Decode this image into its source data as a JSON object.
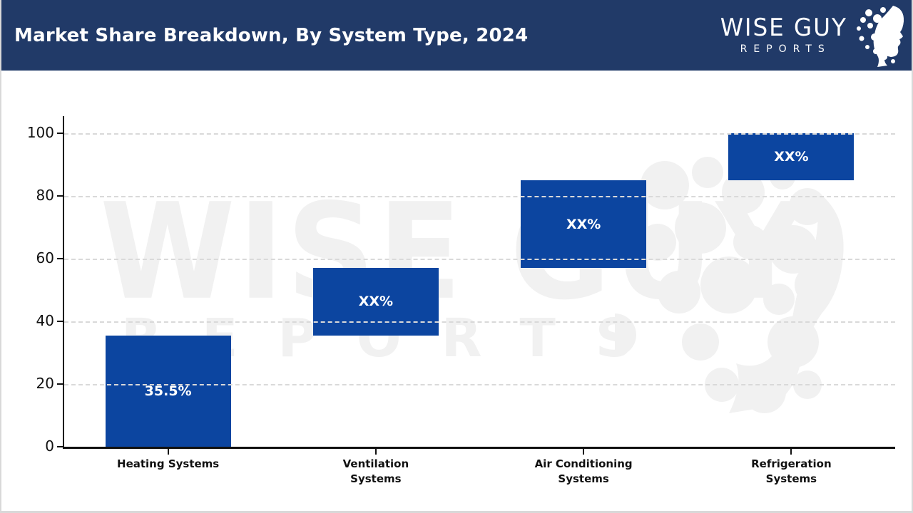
{
  "header": {
    "title": "Market Share Breakdown, By System Type, 2024",
    "logo": {
      "wordmark": "WISE GUY",
      "subtext": "REPORTS"
    }
  },
  "watermark": {
    "line1": "WISE GUY",
    "line2": "REPORTS"
  },
  "colors": {
    "header_bg": "#213a68",
    "bar": "#0c45a0",
    "grid": "#d9d9d9",
    "axis": "#111111",
    "bar_label": "#ffffff",
    "watermark": "#f1f1f1"
  },
  "chart_data": {
    "type": "bar",
    "subtype": "waterfall-breakdown",
    "title": "Market Share Breakdown, By System Type, 2024",
    "categories": [
      "Heating Systems",
      "Ventilation\nSystems",
      "Air Conditioning\nSystems",
      "Refrigeration\nSystems"
    ],
    "segments": [
      {
        "category": "Heating Systems",
        "start": 0,
        "end": 35.5,
        "label": "35.5%"
      },
      {
        "category": "Ventilation Systems",
        "start": 35.5,
        "end": 57,
        "label": "XX%"
      },
      {
        "category": "Air Conditioning Systems",
        "start": 57,
        "end": 85,
        "label": "XX%"
      },
      {
        "category": "Refrigeration Systems",
        "start": 85,
        "end": 100,
        "label": "XX%"
      }
    ],
    "xlabel": "",
    "ylabel": "",
    "ylim": [
      0,
      100
    ],
    "yticks": [
      0,
      20,
      40,
      60,
      80,
      100
    ],
    "grid": "horizontal-dashed",
    "legend": "none"
  }
}
